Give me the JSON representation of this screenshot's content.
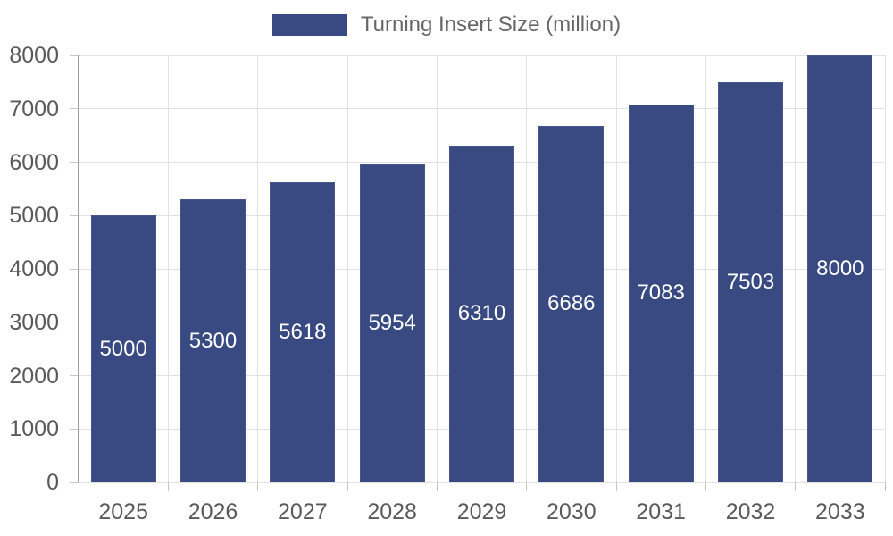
{
  "legend": {
    "label": "Turning Insert Size (million)"
  },
  "chart_data": {
    "type": "bar",
    "title": "Turning Insert Size (million)",
    "series_name": "Turning Insert Size (million)",
    "categories": [
      "2025",
      "2026",
      "2027",
      "2028",
      "2029",
      "2030",
      "2031",
      "2032",
      "2033"
    ],
    "values": [
      5000,
      5300,
      5618,
      5954,
      6310,
      6686,
      7083,
      7503,
      8000
    ],
    "data_labels": [
      5000,
      5300,
      5618,
      5954,
      6310,
      6686,
      7083,
      7503,
      8000
    ],
    "xlabel": "",
    "ylabel": "",
    "ylim": [
      0,
      8000
    ],
    "ytick_step": 1000,
    "yticks": [
      0,
      1000,
      2000,
      3000,
      4000,
      5000,
      6000,
      7000,
      8000
    ],
    "grid": true,
    "legend_position": "top",
    "colors": {
      "bar": "#384A81",
      "bar_border": "#46568D",
      "data_label": "#FFFFFF",
      "grid": "#E1E1E1",
      "axis_line": "#9E9E9E",
      "tick": "#C6C6C6",
      "axis_text": "#5A5A5A",
      "legend_text": "#666666",
      "background": "#FFFFFF"
    }
  }
}
